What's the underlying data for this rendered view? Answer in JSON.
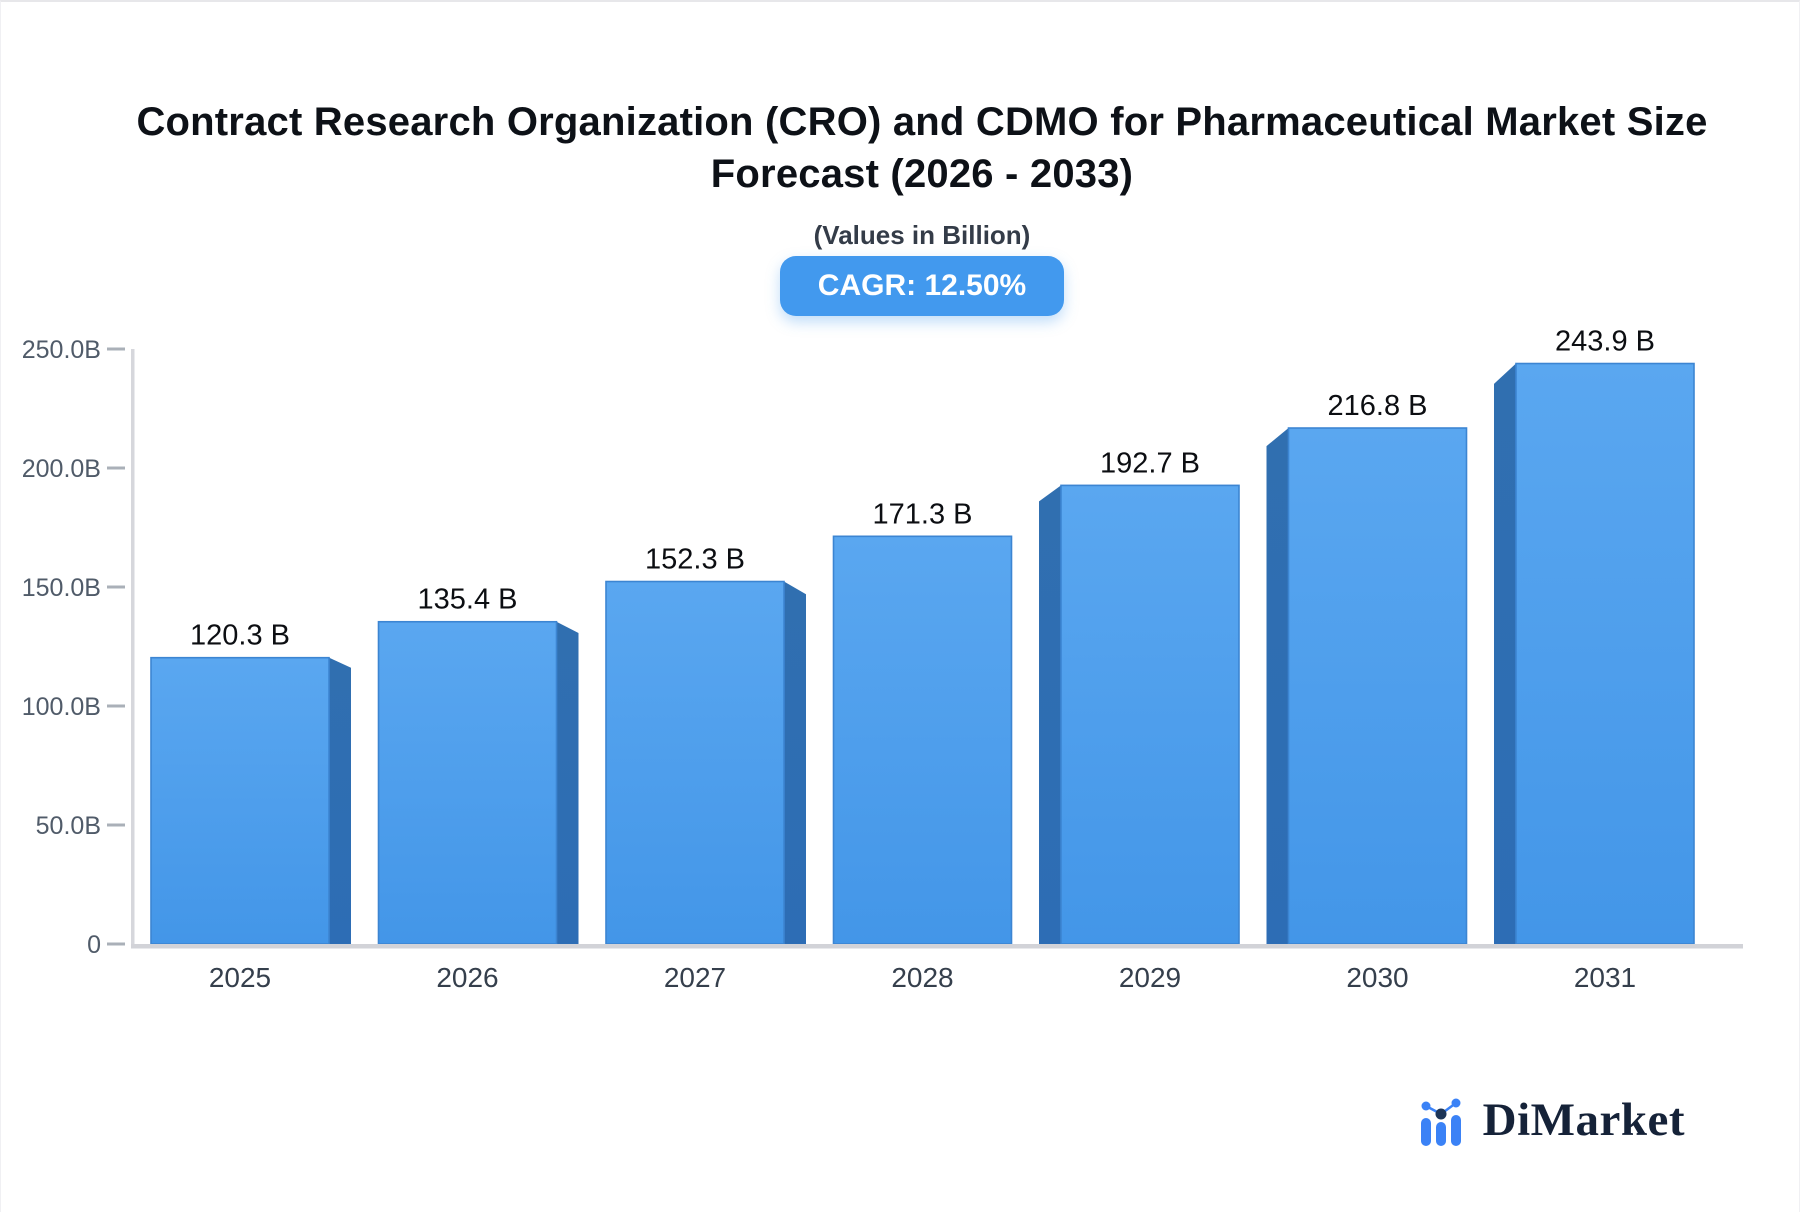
{
  "header": {
    "title_line1": "Contract Research Organization (CRO) and CDMO for Pharmaceutical Market Size",
    "title_line2": "Forecast (2026 - 2033)",
    "subtitle": "(Values in Billion)",
    "cagr_badge": "CAGR: 12.50%"
  },
  "logo": {
    "text": "DiMarket"
  },
  "chart_data": {
    "type": "bar",
    "title": "Contract Research Organization (CRO) and CDMO for Pharmaceutical Market Size Forecast (2026 - 2033)",
    "subtitle": "(Values in Billion)",
    "badge": "CAGR: 12.50%",
    "xlabel": "",
    "ylabel": "",
    "ylim": [
      0,
      250
    ],
    "grid": false,
    "legend": "none",
    "categories": [
      "2025",
      "2026",
      "2027",
      "2028",
      "2029",
      "2030",
      "2031"
    ],
    "values": [
      120.3,
      135.4,
      152.3,
      171.3,
      192.7,
      216.8,
      243.9
    ],
    "value_labels": [
      "120.3 B",
      "135.4 B",
      "152.3 B",
      "171.3 B",
      "192.7 B",
      "216.8 B",
      "243.9 B"
    ],
    "yticks": [
      {
        "label": "0",
        "value": 0
      },
      {
        "label": "50.0B",
        "value": 50
      },
      {
        "label": "100.0B",
        "value": 100
      },
      {
        "label": "150.0B",
        "value": 150
      },
      {
        "label": "200.0B",
        "value": 200
      },
      {
        "label": "250.0B",
        "value": 250
      }
    ],
    "colors": {
      "bar_face_top": "#5aa7f0",
      "bar_face_bottom": "#4396e8",
      "bar_edge": "#3c85d2",
      "bar_side": "#2e70b5",
      "axis_line": "#d6d7dc",
      "baseline": "#d2d3d8",
      "tick_dash": "#aab0b8",
      "ytick_text": "#505b69",
      "xtick_text": "#353f4c",
      "value_text": "#0c0e12",
      "badge_bg": "#4299ee",
      "logo_blue": "#3b82f6",
      "logo_navy": "#1d3557"
    }
  }
}
